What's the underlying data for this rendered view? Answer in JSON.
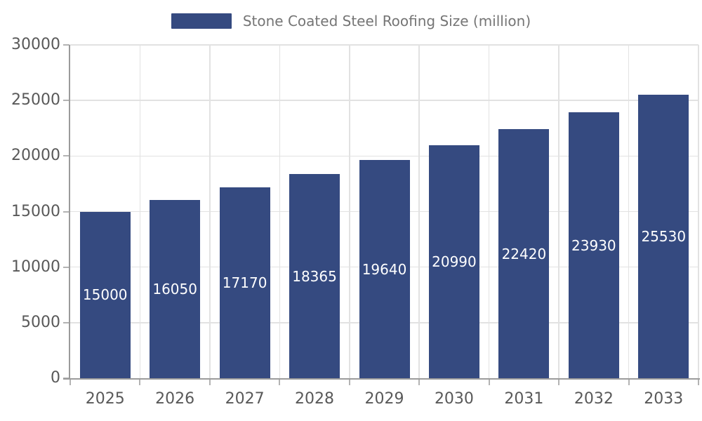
{
  "chart_data": {
    "type": "bar",
    "title": "Stone Coated Steel Roofing Size (million)",
    "legend_position": "top-center",
    "categories": [
      "2025",
      "2026",
      "2027",
      "2028",
      "2029",
      "2030",
      "2031",
      "2032",
      "2033"
    ],
    "series": [
      {
        "name": "Stone Coated Steel Roofing Size (million)",
        "values": [
          15000,
          16050,
          17170,
          18365,
          19640,
          20990,
          22420,
          23930,
          25530
        ]
      }
    ],
    "xlabel": "",
    "ylabel": "",
    "ylim": [
      0,
      30000
    ],
    "ytick_step": 5000,
    "ytick_labels": [
      "0",
      "5000",
      "10000",
      "15000",
      "20000",
      "25000",
      "30000"
    ],
    "grid": true,
    "bar_color": "#354a80",
    "value_label_color": "#ffffff"
  },
  "colors": {
    "background": "#ffffff",
    "bar": "#354a80",
    "grid_line": "#e2e2e2",
    "axis_line": "#9b9b9b",
    "tick_mark": "#b3b3b3",
    "tick_label": "#595959",
    "legend_text": "#757575"
  }
}
